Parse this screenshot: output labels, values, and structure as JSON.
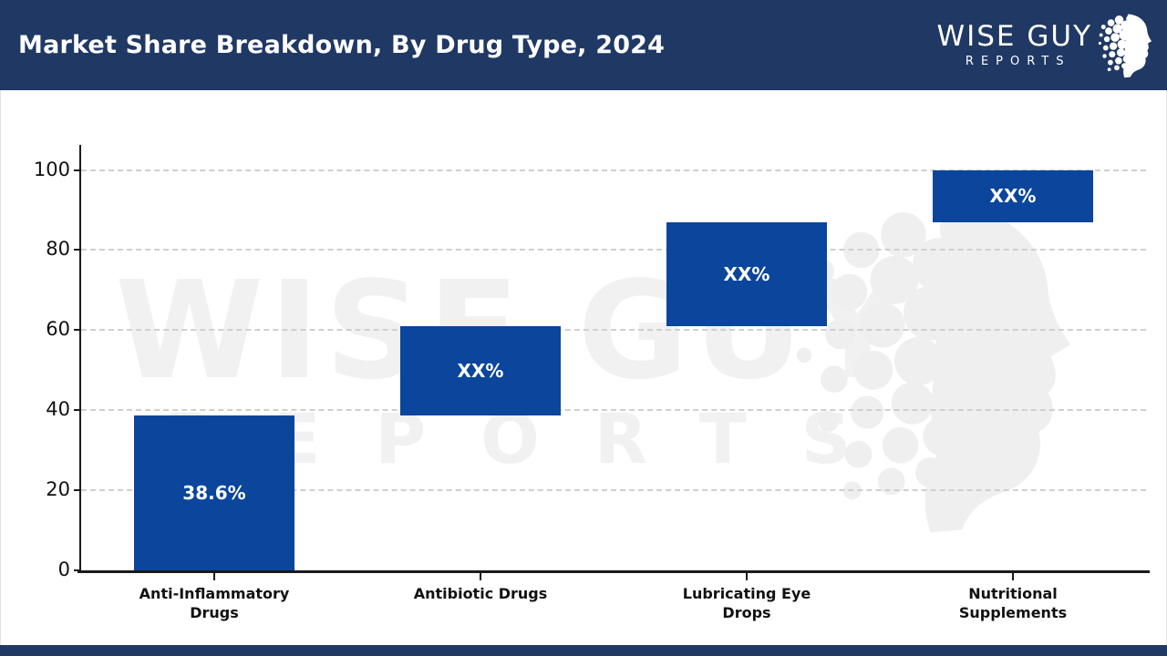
{
  "header": {
    "title": "Market Share Breakdown, By Drug Type, 2024",
    "logo": {
      "line1": "WISE GUY",
      "line2": "REPORTS"
    }
  },
  "watermark": {
    "line1": "WISE GUY",
    "line2": "REPORTS"
  },
  "colors": {
    "header_bg": "#1f3864",
    "footer_bg": "#1f3864",
    "card_bg": "#ffffff",
    "bar": "#0b459c",
    "bar_label": "#ffffff",
    "grid": "#cfcfcf",
    "axis": "#1a1a1a",
    "tick_label": "#111111",
    "watermark": "#f1f1f1"
  },
  "chart_data": {
    "type": "bar",
    "subtype": "waterfall",
    "title": "Market Share Breakdown, By Drug Type, 2024",
    "categories": [
      "Anti-Inflammatory Drugs",
      "Antibiotic Drugs",
      "Lubricating Eye Drops",
      "Nutritional Supplements"
    ],
    "category_label_lines": [
      [
        "Anti-Inflammatory",
        "Drugs"
      ],
      [
        "Antibiotic Drugs"
      ],
      [
        "Lubricating Eye",
        "Drops"
      ],
      [
        "Nutritional",
        "Supplements"
      ]
    ],
    "segments": [
      {
        "category": "Anti-Inflammatory Drugs",
        "start": 0,
        "end": 38.6,
        "label": "38.6%"
      },
      {
        "category": "Antibiotic Drugs",
        "start": 38.6,
        "end": 61,
        "label": "XX%"
      },
      {
        "category": "Lubricating Eye Drops",
        "start": 61,
        "end": 87,
        "label": "XX%"
      },
      {
        "category": "Nutritional Supplements",
        "start": 87,
        "end": 100,
        "label": "XX%"
      }
    ],
    "xlabel": "",
    "ylabel": "",
    "ylim": [
      0,
      100
    ],
    "yticks": [
      0,
      20,
      40,
      60,
      80,
      100
    ],
    "grid": "horizontal-dashed",
    "legend": null,
    "bar_color": "#0b459c",
    "bar_label_color": "#ffffff"
  }
}
